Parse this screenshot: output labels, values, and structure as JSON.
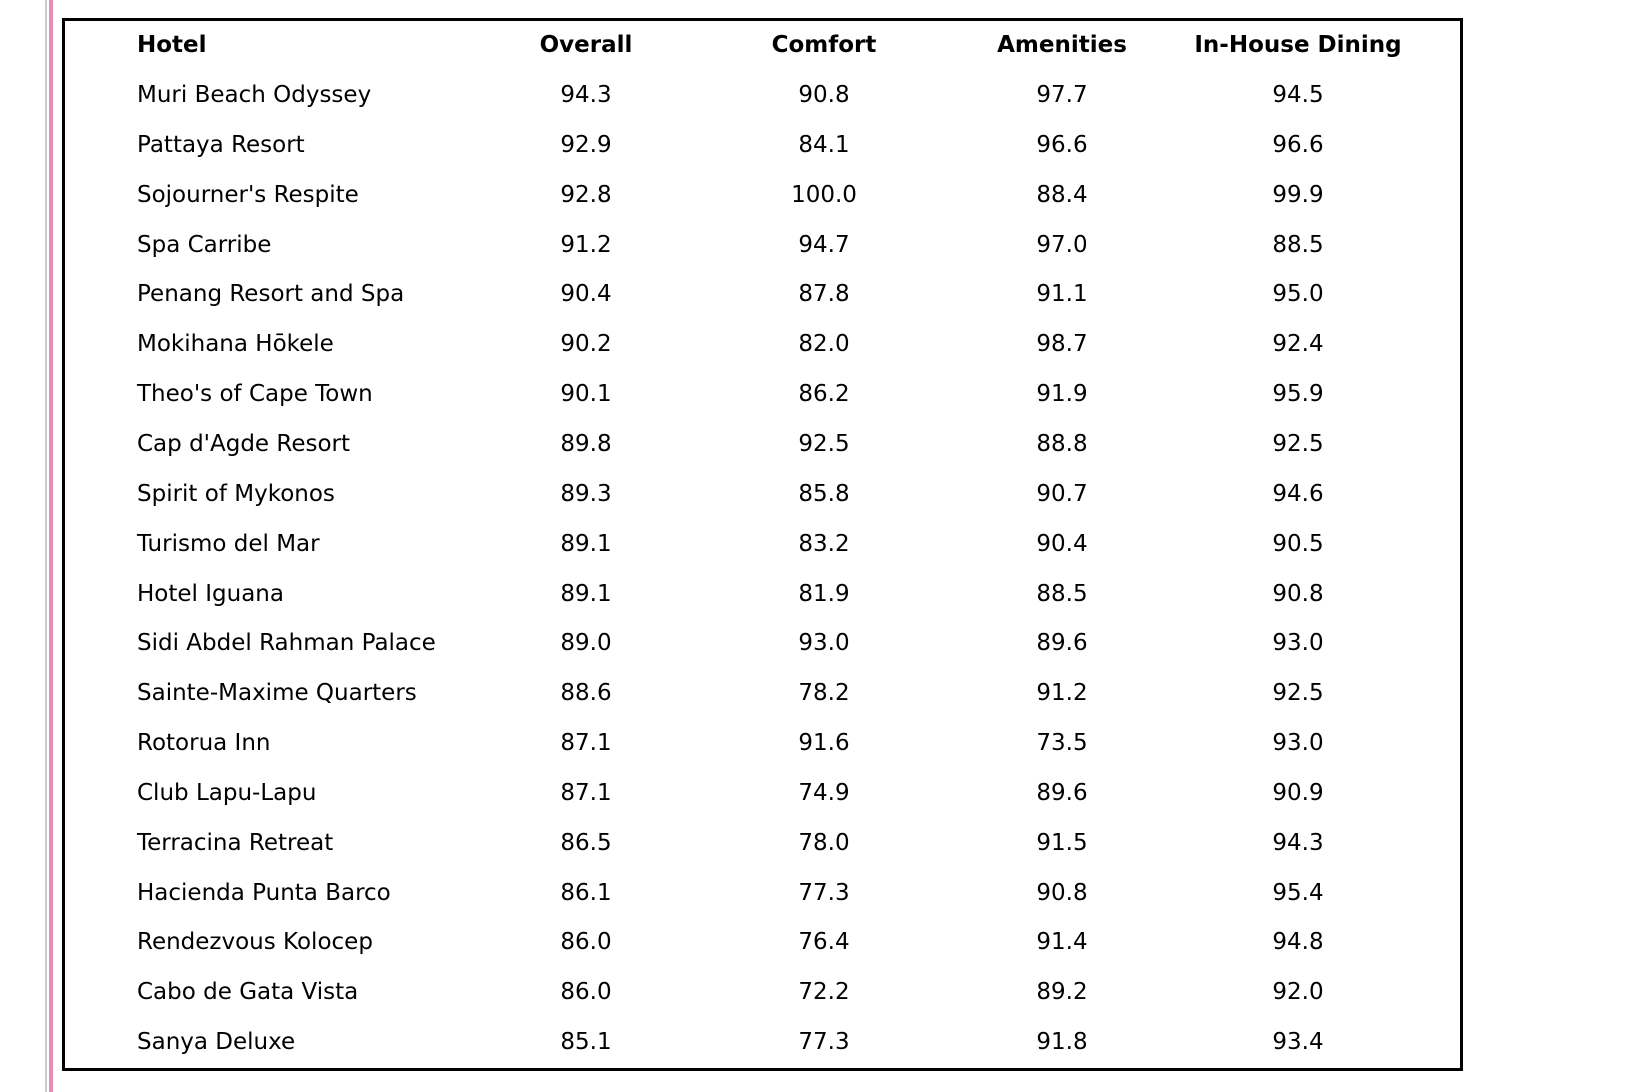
{
  "page": {
    "background": "#ffffff",
    "gutter": {
      "gray_line_color": "#c9c9c9",
      "pink_line_color": "#e78cb7"
    },
    "table_border_color": "#000000",
    "text_color": "#000000"
  },
  "chart_data": {
    "type": "table",
    "columns": [
      "Hotel",
      "Overall",
      "Comfort",
      "Amenities",
      "In-House Dining"
    ],
    "rows": [
      {
        "hotel": "Muri Beach Odyssey",
        "overall": "94.3",
        "comfort": "90.8",
        "amenities": "97.7",
        "dining": "94.5"
      },
      {
        "hotel": "Pattaya Resort",
        "overall": "92.9",
        "comfort": "84.1",
        "amenities": "96.6",
        "dining": "96.6"
      },
      {
        "hotel": "Sojourner's Respite",
        "overall": "92.8",
        "comfort": "100.0",
        "amenities": "88.4",
        "dining": "99.9"
      },
      {
        "hotel": "Spa Carribe",
        "overall": "91.2",
        "comfort": "94.7",
        "amenities": "97.0",
        "dining": "88.5"
      },
      {
        "hotel": "Penang Resort and Spa",
        "overall": "90.4",
        "comfort": "87.8",
        "amenities": "91.1",
        "dining": "95.0"
      },
      {
        "hotel": "Mokihana Hōkele",
        "overall": "90.2",
        "comfort": "82.0",
        "amenities": "98.7",
        "dining": "92.4"
      },
      {
        "hotel": "Theo's of Cape Town",
        "overall": "90.1",
        "comfort": "86.2",
        "amenities": "91.9",
        "dining": "95.9"
      },
      {
        "hotel": "Cap d'Agde Resort",
        "overall": "89.8",
        "comfort": "92.5",
        "amenities": "88.8",
        "dining": "92.5"
      },
      {
        "hotel": "Spirit of Mykonos",
        "overall": "89.3",
        "comfort": "85.8",
        "amenities": "90.7",
        "dining": "94.6"
      },
      {
        "hotel": "Turismo del Mar",
        "overall": "89.1",
        "comfort": "83.2",
        "amenities": "90.4",
        "dining": "90.5"
      },
      {
        "hotel": "Hotel Iguana",
        "overall": "89.1",
        "comfort": "81.9",
        "amenities": "88.5",
        "dining": "90.8"
      },
      {
        "hotel": "Sidi Abdel Rahman Palace",
        "overall": "89.0",
        "comfort": "93.0",
        "amenities": "89.6",
        "dining": "93.0"
      },
      {
        "hotel": "Sainte-Maxime Quarters",
        "overall": "88.6",
        "comfort": "78.2",
        "amenities": "91.2",
        "dining": "92.5"
      },
      {
        "hotel": "Rotorua Inn",
        "overall": "87.1",
        "comfort": "91.6",
        "amenities": "73.5",
        "dining": "93.0"
      },
      {
        "hotel": "Club Lapu-Lapu",
        "overall": "87.1",
        "comfort": "74.9",
        "amenities": "89.6",
        "dining": "90.9"
      },
      {
        "hotel": "Terracina Retreat",
        "overall": "86.5",
        "comfort": "78.0",
        "amenities": "91.5",
        "dining": "94.3"
      },
      {
        "hotel": "Hacienda Punta Barco",
        "overall": "86.1",
        "comfort": "77.3",
        "amenities": "90.8",
        "dining": "95.4"
      },
      {
        "hotel": "Rendezvous Kolocep",
        "overall": "86.0",
        "comfort": "76.4",
        "amenities": "91.4",
        "dining": "94.8"
      },
      {
        "hotel": "Cabo de Gata Vista",
        "overall": "86.0",
        "comfort": "72.2",
        "amenities": "89.2",
        "dining": "92.0"
      },
      {
        "hotel": "Sanya Deluxe",
        "overall": "85.1",
        "comfort": "77.3",
        "amenities": "91.8",
        "dining": "93.4"
      }
    ]
  }
}
